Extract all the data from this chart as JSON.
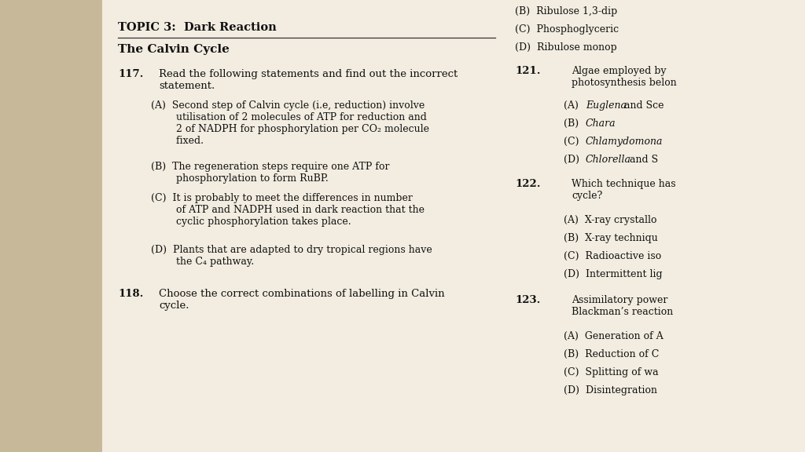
{
  "bg_color": "#c8b89a",
  "page_bg": "#f2ede0",
  "topic_title": "TOPIC 3:  Dark Reaction",
  "section_title": "The Calvin Cycle",
  "q117_num": "117.",
  "q117_text": "Read the following statements and find out the incorrect\nstatement.",
  "q117_A": "(A)  Second step of Calvin cycle (i.e, reduction) involve\n        utilisation of 2 molecules of ATP for reduction and\n        2 of NADPH for phosphorylation per CO₂ molecule\n        fixed.",
  "q117_B": "(B)  The regeneration steps require one ATP for\n        phosphorylation to form RuBP.",
  "q117_C": "(C)  It is probably to meet the differences in number\n        of ATP and NADPH used in dark reaction that the\n        cyclic phosphorylation takes place.",
  "q117_D": "(D)  Plants that are adapted to dry tropical regions have\n        the C₄ pathway.",
  "q118_num": "118.",
  "q118_text": "Choose the correct combinations of labelling in Calvin\ncycle.",
  "q120_B": "(B)  Ribulose 1,3-dip",
  "q120_C": "(C)  Phosphoglyceric",
  "q120_D": "(D)  Ribulose monop",
  "q121_num": "121.",
  "q121_text": "Algae employed by\nphotosynthesis belon",
  "q121_A_pre": "(A)  ",
  "q121_A_italic": "Euglena",
  "q121_A_post": " and Sce",
  "q121_B_pre": "(B)  ",
  "q121_B_italic": "Chara",
  "q121_C_pre": "(C)  ",
  "q121_C_italic": "Chlamydomona",
  "q121_D_pre": "(D)  ",
  "q121_D_italic": "Chlorella",
  "q121_D_post": " and S",
  "q122_num": "122.",
  "q122_text": "Which technique has\ncycle?",
  "q122_A": "(A)  X-ray crystallo",
  "q122_B": "(B)  X-ray techniqu",
  "q122_C": "(C)  Radioactive iso",
  "q122_D": "(D)  Intermittent lig",
  "q123_num": "123.",
  "q123_text": "Assimilatory power\nBlackman’s reaction",
  "q123_A": "(A)  Generation of A",
  "q123_B": "(B)  Reduction of C",
  "q123_C": "(C)  Splitting of wa",
  "q123_D": "(D)  Disintegration",
  "line_color": "#333333",
  "text_color": "#111111"
}
